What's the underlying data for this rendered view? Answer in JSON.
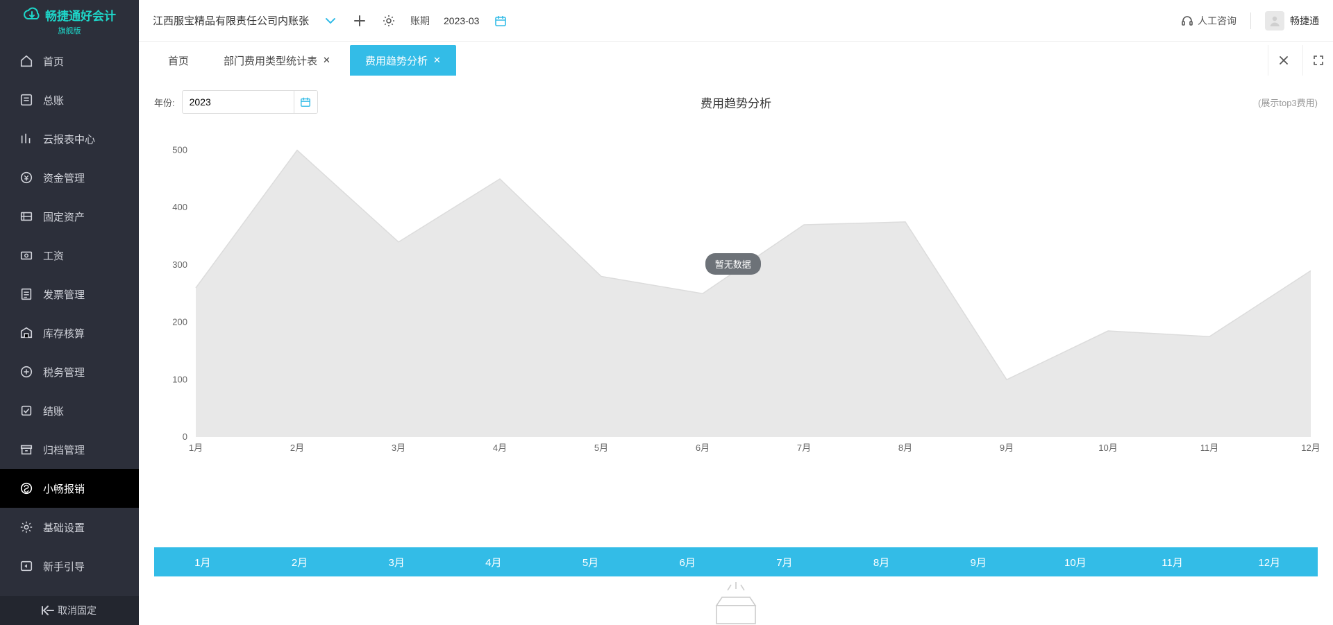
{
  "brand": {
    "name": "畅捷通好会计",
    "edition": "旗舰版"
  },
  "sidebar": {
    "items": [
      {
        "label": "首页",
        "icon": "home"
      },
      {
        "label": "总账",
        "icon": "ledger"
      },
      {
        "label": "云报表中心",
        "icon": "report"
      },
      {
        "label": "资金管理",
        "icon": "funds"
      },
      {
        "label": "固定资产",
        "icon": "asset"
      },
      {
        "label": "工资",
        "icon": "salary"
      },
      {
        "label": "发票管理",
        "icon": "invoice"
      },
      {
        "label": "库存核算",
        "icon": "inventory"
      },
      {
        "label": "税务管理",
        "icon": "tax"
      },
      {
        "label": "结账",
        "icon": "close"
      },
      {
        "label": "归档管理",
        "icon": "archive"
      },
      {
        "label": "小畅报销",
        "icon": "expense",
        "active": true
      },
      {
        "label": "基础设置",
        "icon": "settings"
      },
      {
        "label": "新手引导",
        "icon": "guide"
      }
    ],
    "pin_label": "取消固定"
  },
  "topbar": {
    "company": "江西服宝精品有限责任公司内账张",
    "period_label": "账期",
    "period_value": "2023-03",
    "support_label": "人工咨询",
    "user_name": "畅捷通"
  },
  "tabs": {
    "items": [
      {
        "label": "首页",
        "closable": false
      },
      {
        "label": "部门费用类型统计表",
        "closable": true
      },
      {
        "label": "费用趋势分析",
        "closable": true,
        "active": true
      }
    ]
  },
  "filter": {
    "year_label": "年份:",
    "year_value": "2023",
    "chart_title": "费用趋势分析",
    "top_note": "(展示top3费用)"
  },
  "chart": {
    "type": "area",
    "y_ticks": [
      0,
      100,
      200,
      300,
      400,
      500
    ],
    "ylim": [
      0,
      520
    ],
    "x_labels": [
      "1月",
      "2月",
      "3月",
      "4月",
      "5月",
      "6月",
      "7月",
      "8月",
      "9月",
      "10月",
      "11月",
      "12月"
    ],
    "values": [
      260,
      500,
      340,
      450,
      280,
      250,
      370,
      375,
      100,
      185,
      175,
      290
    ],
    "fill_color": "#e8e8e8",
    "stroke_color": "#dcdcdc",
    "axis_color": "#666666",
    "tick_font_size": 13,
    "background": "#ffffff",
    "no_data_label": "暂无数据",
    "no_data_badge_bg": "#6d7278",
    "no_data_at_index": 5.3
  },
  "month_bar": {
    "labels": [
      "1月",
      "2月",
      "3月",
      "4月",
      "5月",
      "6月",
      "7月",
      "8月",
      "9月",
      "10月",
      "11月",
      "12月"
    ],
    "bg": "#33bce7",
    "text": "#ffffff"
  },
  "colors": {
    "accent": "#33bce7",
    "sidebar_bg": "#2c2f3a",
    "sidebar_active_bg": "#000000",
    "brand": "#1ed6c9"
  }
}
